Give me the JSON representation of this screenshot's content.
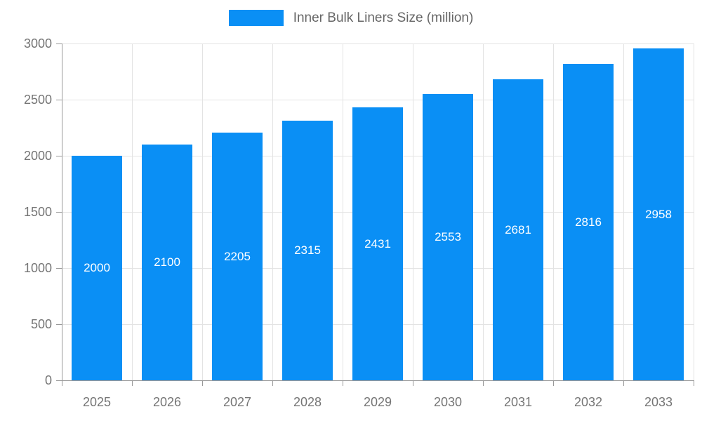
{
  "chart_data": {
    "type": "bar",
    "title": "",
    "legend": "Inner Bulk Liners Size (million)",
    "categories": [
      "2025",
      "2026",
      "2027",
      "2028",
      "2029",
      "2030",
      "2031",
      "2032",
      "2033"
    ],
    "values": [
      2000,
      2100,
      2205,
      2315,
      2431,
      2553,
      2681,
      2816,
      2958
    ],
    "series": [
      {
        "name": "Inner Bulk Liners Size (million)",
        "values": [
          2000,
          2100,
          2205,
          2315,
          2431,
          2553,
          2681,
          2816,
          2958
        ]
      }
    ],
    "xlabel": "",
    "ylabel": "",
    "ylim": [
      0,
      3000
    ],
    "yticks": [
      0,
      500,
      1000,
      1500,
      2000,
      2500,
      3000
    ],
    "grid": true,
    "legend_position": "top",
    "value_labels_shown": true,
    "colors": {
      "bar": "#0A8FF5",
      "grid": "#E3E3E3",
      "axis": "#999999",
      "tick_text": "#757575",
      "legend_text": "#666666",
      "value_label": "#FFFFFF"
    }
  }
}
